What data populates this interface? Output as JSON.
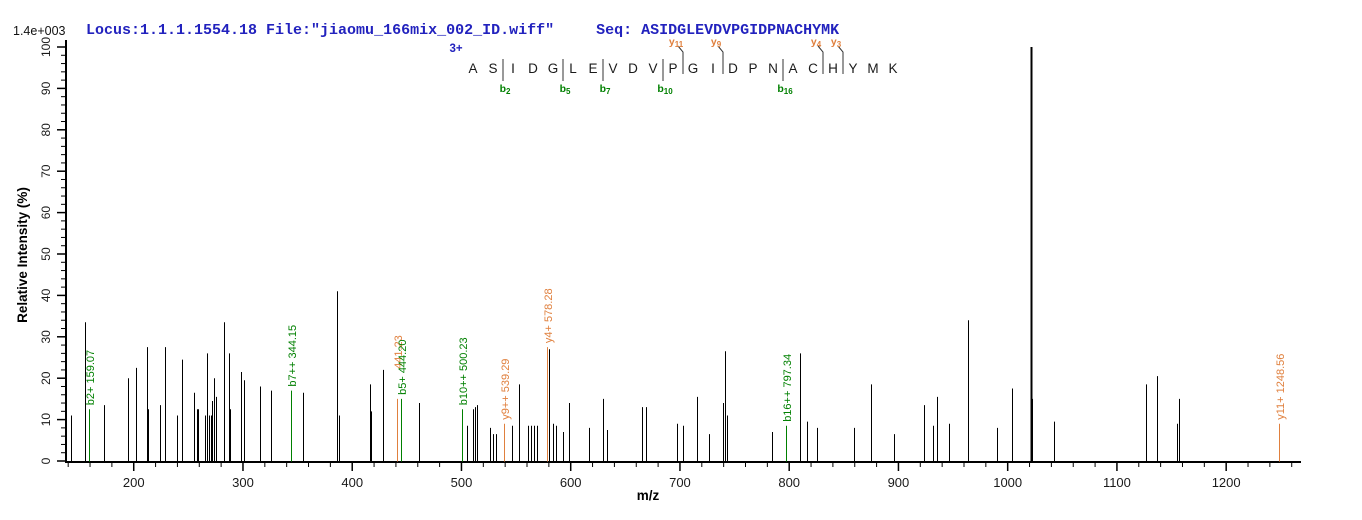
{
  "header": {
    "locus_file": "Locus:1.1.1.1554.18 File:\"jiaomu_166mix_002_ID.wiff\"",
    "seq": "Seq: ASIDGLEVDVPGIDPNACHYMK",
    "max_intensity_label": "1.4e+003"
  },
  "colors": {
    "header_text": "#2222BE",
    "b_ion": "#008000",
    "y_ion": "#E0803E",
    "peak": "#000000",
    "axis": "#000000",
    "tick_label": "#1a1a1a",
    "residue": "#1a1a1a",
    "divider": "#333333",
    "charge": "#2222BE"
  },
  "sequence": {
    "precursor_charge": "3+",
    "residues": [
      "A",
      "S",
      "I",
      "D",
      "G",
      "L",
      "E",
      "V",
      "D",
      "V",
      "P",
      "G",
      "I",
      "D",
      "P",
      "N",
      "A",
      "C",
      "H",
      "Y",
      "M",
      "K"
    ],
    "b_markers": [
      {
        "ion": "b",
        "sub": "2",
        "after_residue": 2
      },
      {
        "ion": "b",
        "sub": "5",
        "after_residue": 5
      },
      {
        "ion": "b",
        "sub": "7",
        "after_residue": 7
      },
      {
        "ion": "b",
        "sub": "10",
        "after_residue": 10
      },
      {
        "ion": "b",
        "sub": "16",
        "after_residue": 16
      }
    ],
    "y_markers": [
      {
        "ion": "y",
        "sub": "11",
        "after_residue": 11
      },
      {
        "ion": "y",
        "sub": "9",
        "after_residue": 13
      },
      {
        "ion": "y",
        "sub": "4",
        "after_residue": 18
      },
      {
        "ion": "y",
        "sub": "3",
        "after_residue": 19
      }
    ]
  },
  "axes": {
    "x": {
      "label": "m/z",
      "min": 138,
      "max": 1263,
      "major_step": 100,
      "minor_step": 20,
      "first_major": 200,
      "last_major": 1200
    },
    "y": {
      "label": "Relative Intensity (%)",
      "min": 0,
      "max": 100,
      "major_step": 10,
      "minor_step": 2
    }
  },
  "chart_data": {
    "type": "bar",
    "subtype": "centroided-msms-spectrum",
    "xlabel": "m/z",
    "ylabel": "Relative Intensity (%)",
    "xlim": [
      138,
      1263
    ],
    "ylim": [
      0,
      100
    ],
    "base_peak_absolute_intensity": "1.4e+003",
    "peaks": [
      {
        "mz": 143,
        "i": 11
      },
      {
        "mz": 155,
        "i": 33.5
      },
      {
        "mz": 159.07,
        "i": 12.5,
        "ion": "b",
        "label": "b2+ 159.07"
      },
      {
        "mz": 173,
        "i": 13.5
      },
      {
        "mz": 195,
        "i": 20
      },
      {
        "mz": 202,
        "i": 22.5
      },
      {
        "mz": 212,
        "i": 27.5
      },
      {
        "mz": 213.5,
        "i": 12.5
      },
      {
        "mz": 224,
        "i": 13.5
      },
      {
        "mz": 229,
        "i": 27.5
      },
      {
        "mz": 240,
        "i": 11
      },
      {
        "mz": 244,
        "i": 24.5
      },
      {
        "mz": 255,
        "i": 16.5
      },
      {
        "mz": 257.5,
        "i": 12.5
      },
      {
        "mz": 259,
        "i": 12.5
      },
      {
        "mz": 265.5,
        "i": 11
      },
      {
        "mz": 267,
        "i": 26
      },
      {
        "mz": 269,
        "i": 11
      },
      {
        "mz": 270.5,
        "i": 11
      },
      {
        "mz": 272,
        "i": 14.5
      },
      {
        "mz": 273.5,
        "i": 20
      },
      {
        "mz": 275,
        "i": 15.5
      },
      {
        "mz": 283,
        "i": 33.5
      },
      {
        "mz": 287,
        "i": 26
      },
      {
        "mz": 288.5,
        "i": 12.5
      },
      {
        "mz": 298.5,
        "i": 21.5
      },
      {
        "mz": 300.5,
        "i": 19.5
      },
      {
        "mz": 315.5,
        "i": 18
      },
      {
        "mz": 325.5,
        "i": 17
      },
      {
        "mz": 344.15,
        "i": 17,
        "ion": "b",
        "label": "b7++ 344.15"
      },
      {
        "mz": 355,
        "i": 16.5
      },
      {
        "mz": 386,
        "i": 41
      },
      {
        "mz": 387.5,
        "i": 11
      },
      {
        "mz": 416,
        "i": 18.5
      },
      {
        "mz": 417.5,
        "i": 12
      },
      {
        "mz": 428,
        "i": 22
      },
      {
        "mz": 441.23,
        "i": 15,
        "ion": "y",
        "label": "441.23",
        "ldy": -26
      },
      {
        "mz": 444.2,
        "i": 15,
        "ion": "b",
        "label": "b5+ 444.20"
      },
      {
        "mz": 461,
        "i": 14
      },
      {
        "mz": 500.23,
        "i": 12.5,
        "ion": "b",
        "label": "b10++ 500.23"
      },
      {
        "mz": 505,
        "i": 8.5
      },
      {
        "mz": 510.5,
        "i": 12.5
      },
      {
        "mz": 512.5,
        "i": 13
      },
      {
        "mz": 514.5,
        "i": 13.5
      },
      {
        "mz": 526,
        "i": 8
      },
      {
        "mz": 529,
        "i": 6.5
      },
      {
        "mz": 531.5,
        "i": 6.5
      },
      {
        "mz": 539.29,
        "i": 9,
        "ion": "y",
        "label": "y9++ 539.29"
      },
      {
        "mz": 546,
        "i": 8.5
      },
      {
        "mz": 553,
        "i": 18.5
      },
      {
        "mz": 561,
        "i": 8.5
      },
      {
        "mz": 564,
        "i": 8.5
      },
      {
        "mz": 566.5,
        "i": 8.5
      },
      {
        "mz": 569,
        "i": 8.5
      },
      {
        "mz": 578.28,
        "i": 27.5,
        "ion": "y",
        "label": "y4+ 578.28"
      },
      {
        "mz": 579.8,
        "i": 27
      },
      {
        "mz": 584,
        "i": 9
      },
      {
        "mz": 586.5,
        "i": 8.5
      },
      {
        "mz": 592.5,
        "i": 7
      },
      {
        "mz": 598,
        "i": 14
      },
      {
        "mz": 617,
        "i": 8
      },
      {
        "mz": 630,
        "i": 15
      },
      {
        "mz": 633,
        "i": 7.5
      },
      {
        "mz": 665.5,
        "i": 13
      },
      {
        "mz": 668.5,
        "i": 13
      },
      {
        "mz": 697,
        "i": 9
      },
      {
        "mz": 702.5,
        "i": 8.5
      },
      {
        "mz": 716,
        "i": 15.5
      },
      {
        "mz": 727,
        "i": 6.5
      },
      {
        "mz": 739,
        "i": 14
      },
      {
        "mz": 741,
        "i": 26.5
      },
      {
        "mz": 743.5,
        "i": 11
      },
      {
        "mz": 784,
        "i": 7
      },
      {
        "mz": 797.34,
        "i": 8.5,
        "ion": "b",
        "label": "b16++ 797.34"
      },
      {
        "mz": 810,
        "i": 26
      },
      {
        "mz": 816.5,
        "i": 9.5
      },
      {
        "mz": 825.5,
        "i": 8
      },
      {
        "mz": 859,
        "i": 8
      },
      {
        "mz": 875,
        "i": 18.5
      },
      {
        "mz": 896,
        "i": 6.5
      },
      {
        "mz": 923,
        "i": 13.5
      },
      {
        "mz": 931.5,
        "i": 8.5
      },
      {
        "mz": 935.5,
        "i": 15.5
      },
      {
        "mz": 946.5,
        "i": 9
      },
      {
        "mz": 964,
        "i": 34
      },
      {
        "mz": 990,
        "i": 8
      },
      {
        "mz": 1004,
        "i": 17.5
      },
      {
        "mz": 1021,
        "i": 100
      },
      {
        "mz": 1022.5,
        "i": 15
      },
      {
        "mz": 1042.5,
        "i": 9.5
      },
      {
        "mz": 1127,
        "i": 18.5
      },
      {
        "mz": 1137,
        "i": 20.5
      },
      {
        "mz": 1155,
        "i": 9
      },
      {
        "mz": 1156.5,
        "i": 15
      },
      {
        "mz": 1248.56,
        "i": 9,
        "ion": "y",
        "label": "y11+ 1248.56"
      }
    ]
  }
}
